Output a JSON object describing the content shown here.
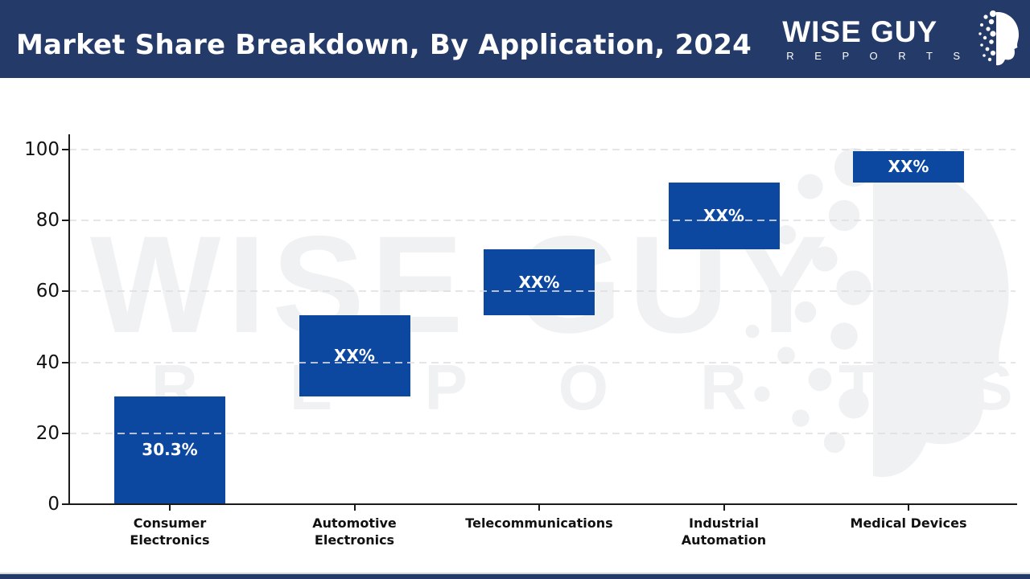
{
  "header": {
    "title": "Market Share Breakdown, By Application, 2024",
    "logo": {
      "wordmark": "WISE GUY",
      "subtext": "R E P O R T S"
    }
  },
  "watermark": {
    "wordmark": "WISE GUY",
    "subtext": "R E P O R T S"
  },
  "colors": {
    "header_bg": "#243A68",
    "bar": "#0C47A0",
    "bar_label_text": "#FFFFFF",
    "axis": "#1A1A1A",
    "grid": "#DFDFE2",
    "watermark": "#F0F1F3",
    "footer_bar": "#243A68"
  },
  "chart_data": {
    "type": "bar",
    "subtype": "waterfall",
    "title": "Market Share Breakdown, By Application, 2024",
    "categories": [
      "Consumer Electronics",
      "Automotive Electronics",
      "Telecommunications",
      "Industrial Automation",
      "Medical Devices"
    ],
    "categories_lines": [
      [
        "Consumer",
        "Electronics"
      ],
      [
        "Automotive",
        "Electronics"
      ],
      [
        "Telecommunications"
      ],
      [
        "Industrial",
        "Automation"
      ],
      [
        "Medical Devices"
      ]
    ],
    "segments": [
      {
        "category": "Consumer Electronics",
        "start": 0,
        "end": 30.3,
        "label": "30.3%"
      },
      {
        "category": "Automotive Electronics",
        "start": 30.3,
        "end": 53.2,
        "label": "XX%"
      },
      {
        "category": "Telecommunications",
        "start": 53.2,
        "end": 71.9,
        "label": "XX%"
      },
      {
        "category": "Industrial Automation",
        "start": 71.9,
        "end": 90.7,
        "label": "XX%"
      },
      {
        "category": "Medical Devices",
        "start": 90.7,
        "end": 99.6,
        "label": "XX%"
      }
    ],
    "bar_labels": [
      "30.3%",
      "XX%",
      "XX%",
      "XX%",
      "XX%"
    ],
    "yticks": [
      0,
      20,
      40,
      60,
      80,
      100
    ],
    "ylim": [
      0,
      104
    ],
    "xlabel": "",
    "ylabel": "",
    "grid": "horizontal-dashed",
    "legend": false
  }
}
